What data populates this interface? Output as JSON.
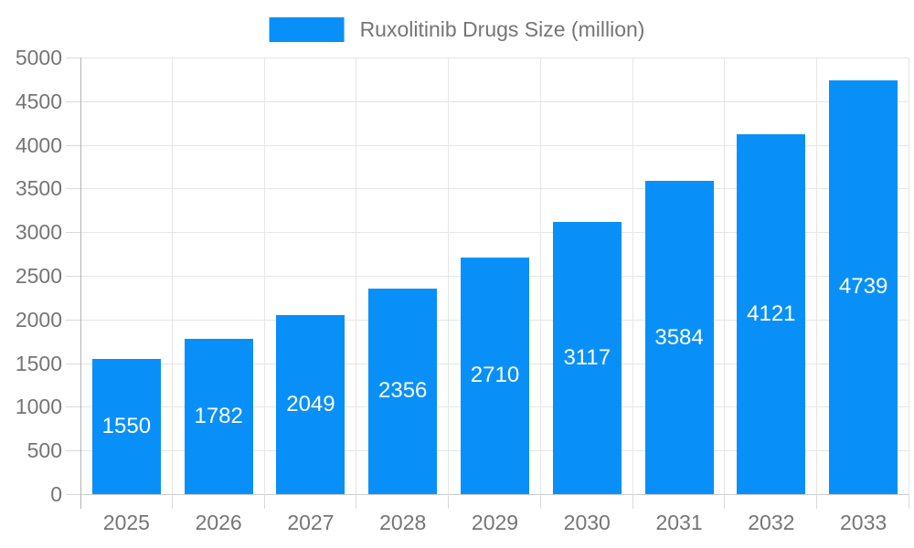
{
  "legend": {
    "label": "Ruxolitinib Drugs Size (million)"
  },
  "colors": {
    "bar": "#0890F8",
    "bar_label_text": "#FFFFFF",
    "gridline": "#E6E6E6",
    "baseline": "#CCCCCC",
    "axis_line": "#B3B3B3",
    "tick": "#D9D9D9",
    "axis_text": "#757575",
    "background": "#FFFFFF"
  },
  "chart_data": {
    "type": "bar",
    "title": "Ruxolitinib Drugs Size (million)",
    "categories": [
      "2025",
      "2026",
      "2027",
      "2028",
      "2029",
      "2030",
      "2031",
      "2032",
      "2033"
    ],
    "values": [
      1550,
      1782,
      2049,
      2356,
      2710,
      3117,
      3584,
      4121,
      4739
    ],
    "series_name": "Ruxolitinib Drugs Size (million)",
    "xlabel": "",
    "ylabel": "",
    "ylim": [
      0,
      5000
    ],
    "y_tick_step": 500,
    "y_tick_labels": [
      "0",
      "500",
      "1000",
      "1500",
      "2000",
      "2500",
      "3000",
      "3500",
      "4000",
      "4500",
      "5000"
    ],
    "grid": true,
    "legend_position": "top-center",
    "bar_value_labels": "inside-center-white"
  }
}
